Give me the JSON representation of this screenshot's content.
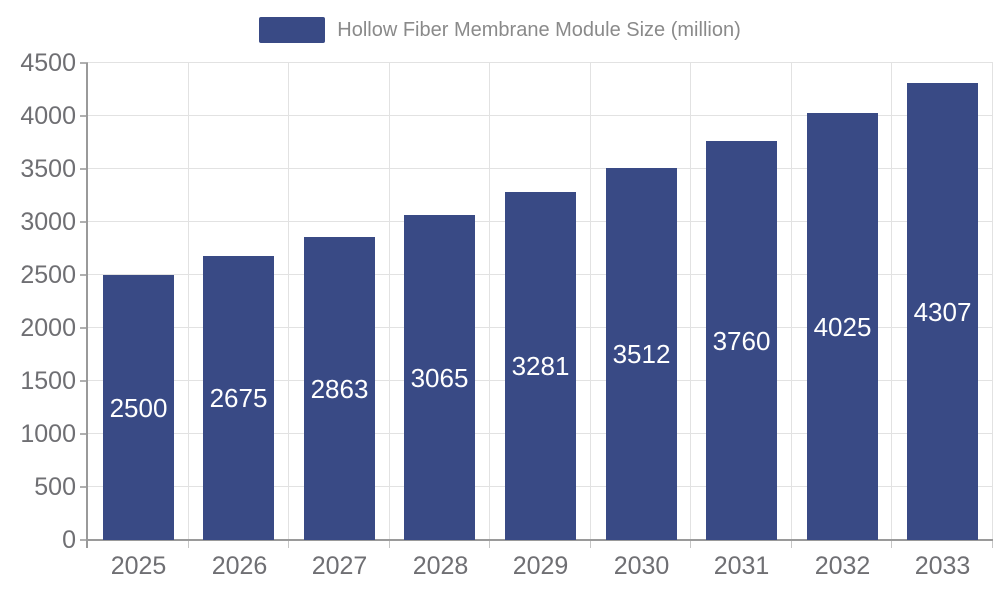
{
  "chart_data": {
    "type": "bar",
    "title": "",
    "legend": "Hollow Fiber Membrane Module Size (million)",
    "categories": [
      "2025",
      "2026",
      "2027",
      "2028",
      "2029",
      "2030",
      "2031",
      "2032",
      "2033"
    ],
    "values": [
      2500,
      2675,
      2863,
      3065,
      3281,
      3512,
      3760,
      4025,
      4307
    ],
    "ylim": [
      0,
      4500
    ],
    "ytick_step": 500,
    "ytick_labels": [
      "0",
      "500",
      "1000",
      "1500",
      "2000",
      "2500",
      "3000",
      "3500",
      "4000",
      "4500"
    ],
    "grid": true,
    "legend_position": "top-center",
    "value_labels_position": "inside-center",
    "colors": {
      "bar": "#394a85",
      "value_label": "#ffffff",
      "axis_label": "#6f6f73",
      "legend_text": "#8a8a8a",
      "gridline": "#e2e2e2",
      "axis_line": "#9a9a9a",
      "tick": "#c6c6c6",
      "ytick": "#b0b0b0",
      "background": "#ffffff"
    }
  }
}
